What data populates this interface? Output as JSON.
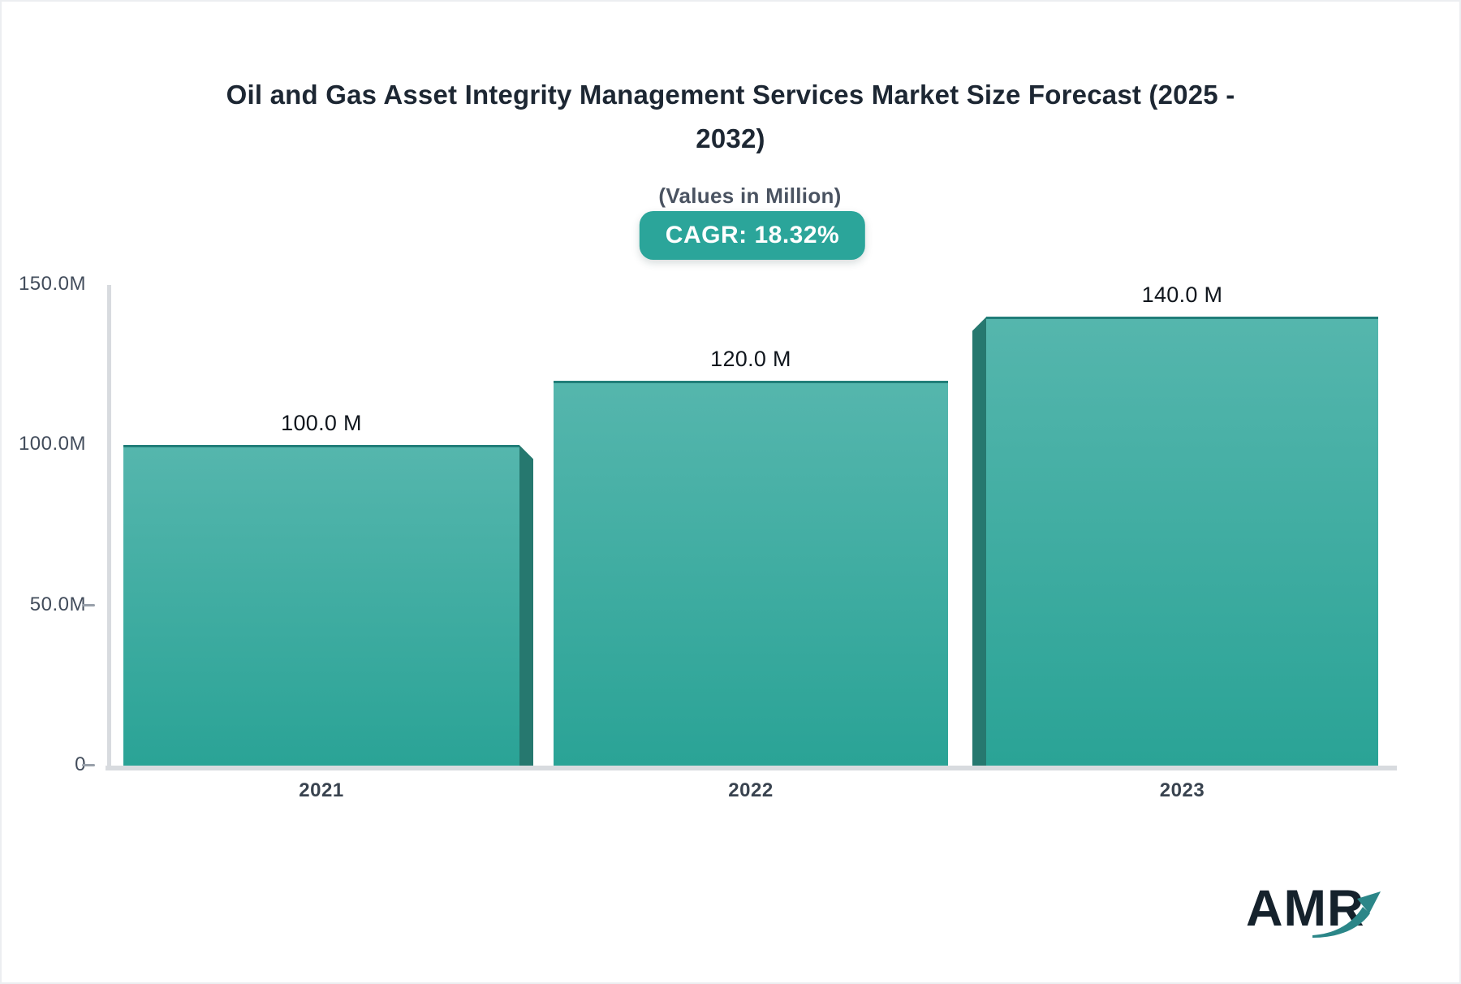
{
  "header": {
    "title_line1": "Oil and Gas Asset Integrity Management Services Market Size Forecast (2025 -",
    "title_line2": "2032)",
    "subtitle": "(Values in Million)",
    "cagr_badge": "CAGR: 18.32%"
  },
  "footer": {
    "logo_text": "AMR"
  },
  "colors": {
    "bar_top": "#55b6ad",
    "bar_bottom": "#2aa396",
    "bar_edge": "#217e79",
    "bar_bevel": "#26786f",
    "badge_bg": "#2ba59a",
    "axis": "#d8dbdf",
    "title_text": "#1d2733",
    "subtitle_text": "#4a5361",
    "tick_text": "#424c5b",
    "year_text": "#39434f",
    "value_text": "#10161d",
    "logo_text_color": "#15222c",
    "logo_arrow_color": "#2b8688"
  },
  "chart_data": {
    "type": "bar",
    "title": "Oil and Gas Asset Integrity Management Services Market Size Forecast (2025 - 2032)",
    "subtitle": "(Values in Million)",
    "cagr_percent": 18.32,
    "unit": "Million",
    "categories": [
      "2021",
      "2022",
      "2023"
    ],
    "values": [
      100,
      120,
      140
    ],
    "value_labels": [
      "100.0 M",
      "120.0 M",
      "140.0 M"
    ],
    "ylim": [
      0,
      150
    ],
    "yticks": [
      {
        "label": "150.0M",
        "value": 150,
        "dash": false
      },
      {
        "label": "100.0M",
        "value": 100,
        "dash": false
      },
      {
        "label": "50.0M",
        "value": 50,
        "dash": true
      },
      {
        "label": "0",
        "value": 0,
        "dash": true
      }
    ],
    "grid": false,
    "legend": false
  }
}
